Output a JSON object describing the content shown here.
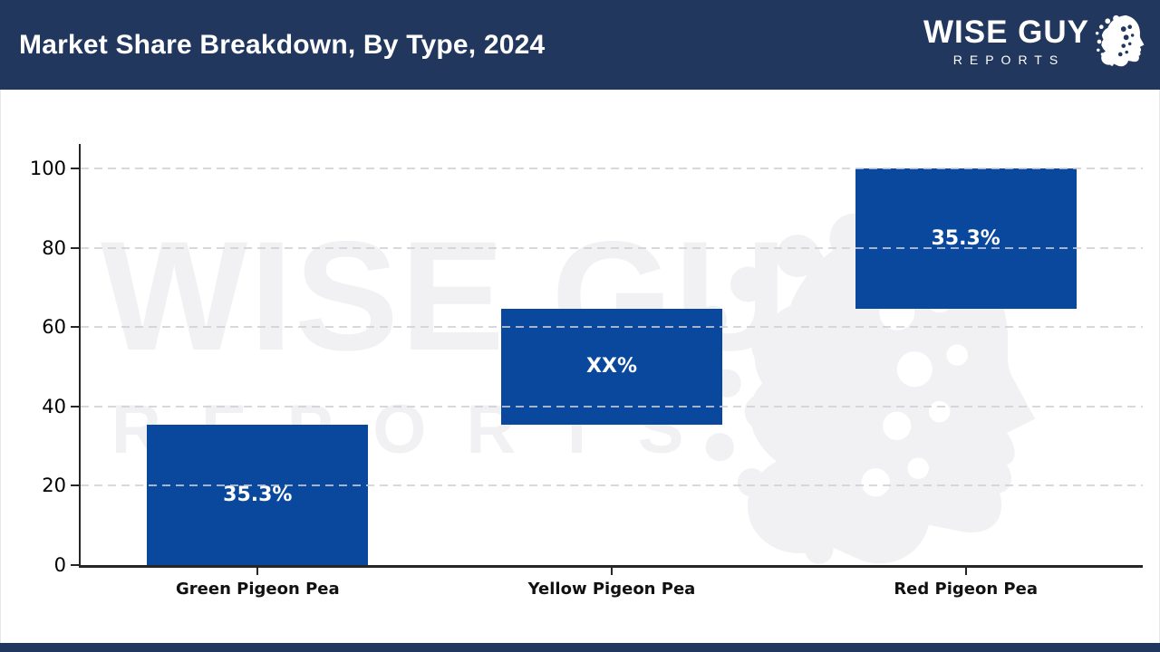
{
  "header": {
    "title": "Market Share Breakdown, By Type, 2024"
  },
  "brand": {
    "name": "WISE GUY",
    "subtitle": "REPORTS",
    "face_icon": "dotted-face-profile"
  },
  "colors": {
    "header_bg": "#21375e",
    "footer_bg": "#21375e",
    "bar_blue": "#0a489e",
    "grid_gray": "#d3d5da",
    "axis_dark": "#262626",
    "watermark_gray": "#f1f1f3",
    "title_text": "#ffffff",
    "bar_label_text": "#ffffff",
    "tick_text": "#000000",
    "category_text": "#111111"
  },
  "chart_data": {
    "type": "bar",
    "variant": "waterfall-floating-bars",
    "title": "Market Share Breakdown, By Type, 2024",
    "categories": [
      "Green Pigeon Pea",
      "Yellow Pigeon Pea",
      "Red Pigeon Pea"
    ],
    "segments": [
      {
        "category": "Green Pigeon Pea",
        "start": 0,
        "end": 35.3,
        "label": "35.3%"
      },
      {
        "category": "Yellow Pigeon Pea",
        "start": 35.3,
        "end": 64.7,
        "label": "XX%"
      },
      {
        "category": "Red Pigeon Pea",
        "start": 64.7,
        "end": 100,
        "label": "35.3%"
      }
    ],
    "xlabel": "",
    "ylabel": "",
    "ylim": [
      0,
      100
    ],
    "yticks": [
      0,
      20,
      40,
      60,
      80,
      100
    ],
    "grid": "horizontal dashed, drawn over bars",
    "legend": "none",
    "bar_color": "#0a489e"
  }
}
